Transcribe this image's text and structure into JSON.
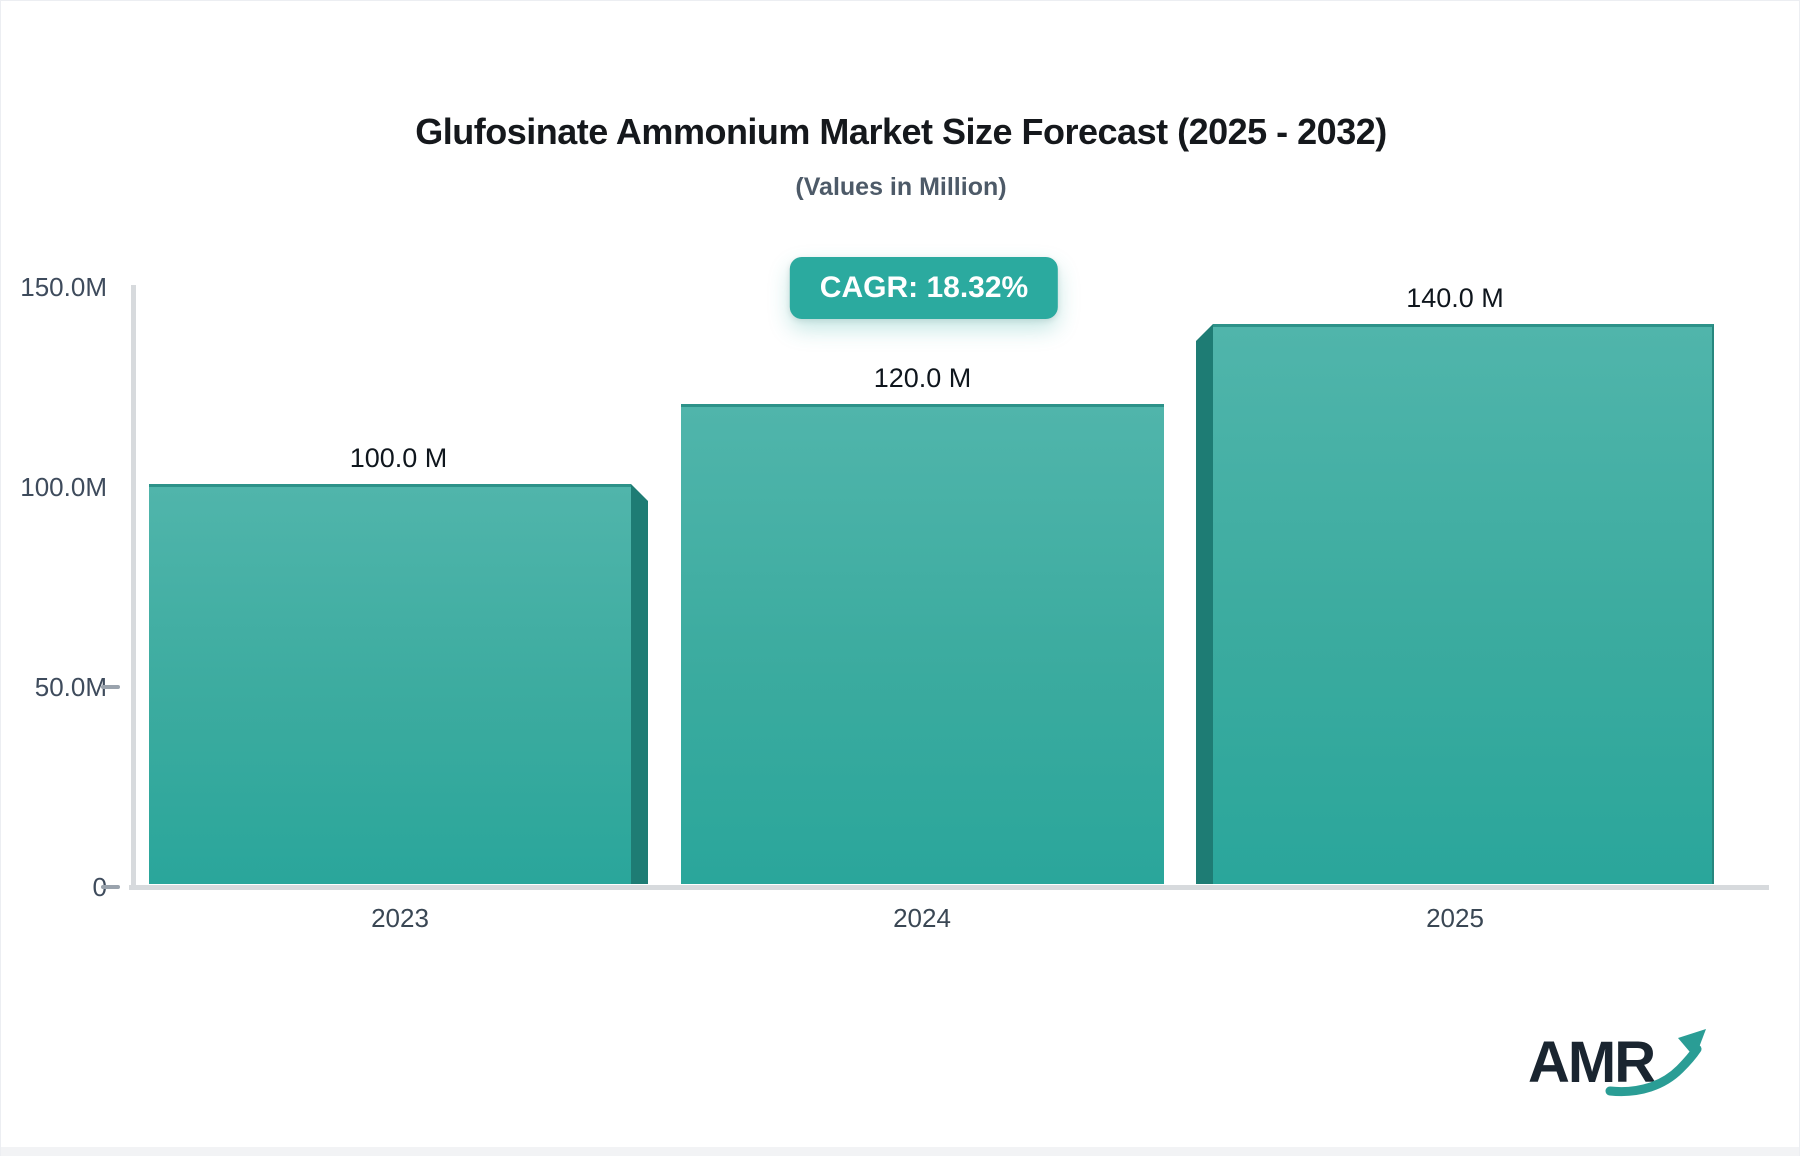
{
  "header": {
    "title": "Glufosinate Ammonium Market Size Forecast (2025 - 2032)",
    "subtitle": "(Values in Million)",
    "cagr_label": "CAGR: 18.32%"
  },
  "chart_data": {
    "type": "bar",
    "title": "Glufosinate Ammonium Market Size Forecast (2025 - 2032)",
    "subtitle": "(Values in Million)",
    "cagr_percent": 18.32,
    "categories": [
      "2023",
      "2024",
      "2025"
    ],
    "values": [
      100.0,
      120.0,
      140.0
    ],
    "bar_labels": [
      "100.0 M",
      "120.0 M",
      "140.0 M"
    ],
    "y_tick_labels": [
      "150.0M",
      "100.0M",
      "50.0M",
      "0"
    ],
    "ylim": [
      0,
      150
    ],
    "grid": false,
    "legend": false,
    "bar_gradient_top": "#50b5ab",
    "bar_gradient_bottom": "#2aa69b",
    "bar_side_shade": "#1e7c74"
  },
  "branding": {
    "logo_text": "AMR",
    "arrow_icon": "growth-arrow-icon",
    "logo_text_color": "#1a2530",
    "arrow_color": "#2a9d95"
  },
  "colors": {
    "accent_teal": "#2baa9f",
    "axis_text": "#3e4b5c",
    "axis_line": "#d7dadd",
    "title_text": "#15181c",
    "subtitle_text": "#4d5a68"
  }
}
